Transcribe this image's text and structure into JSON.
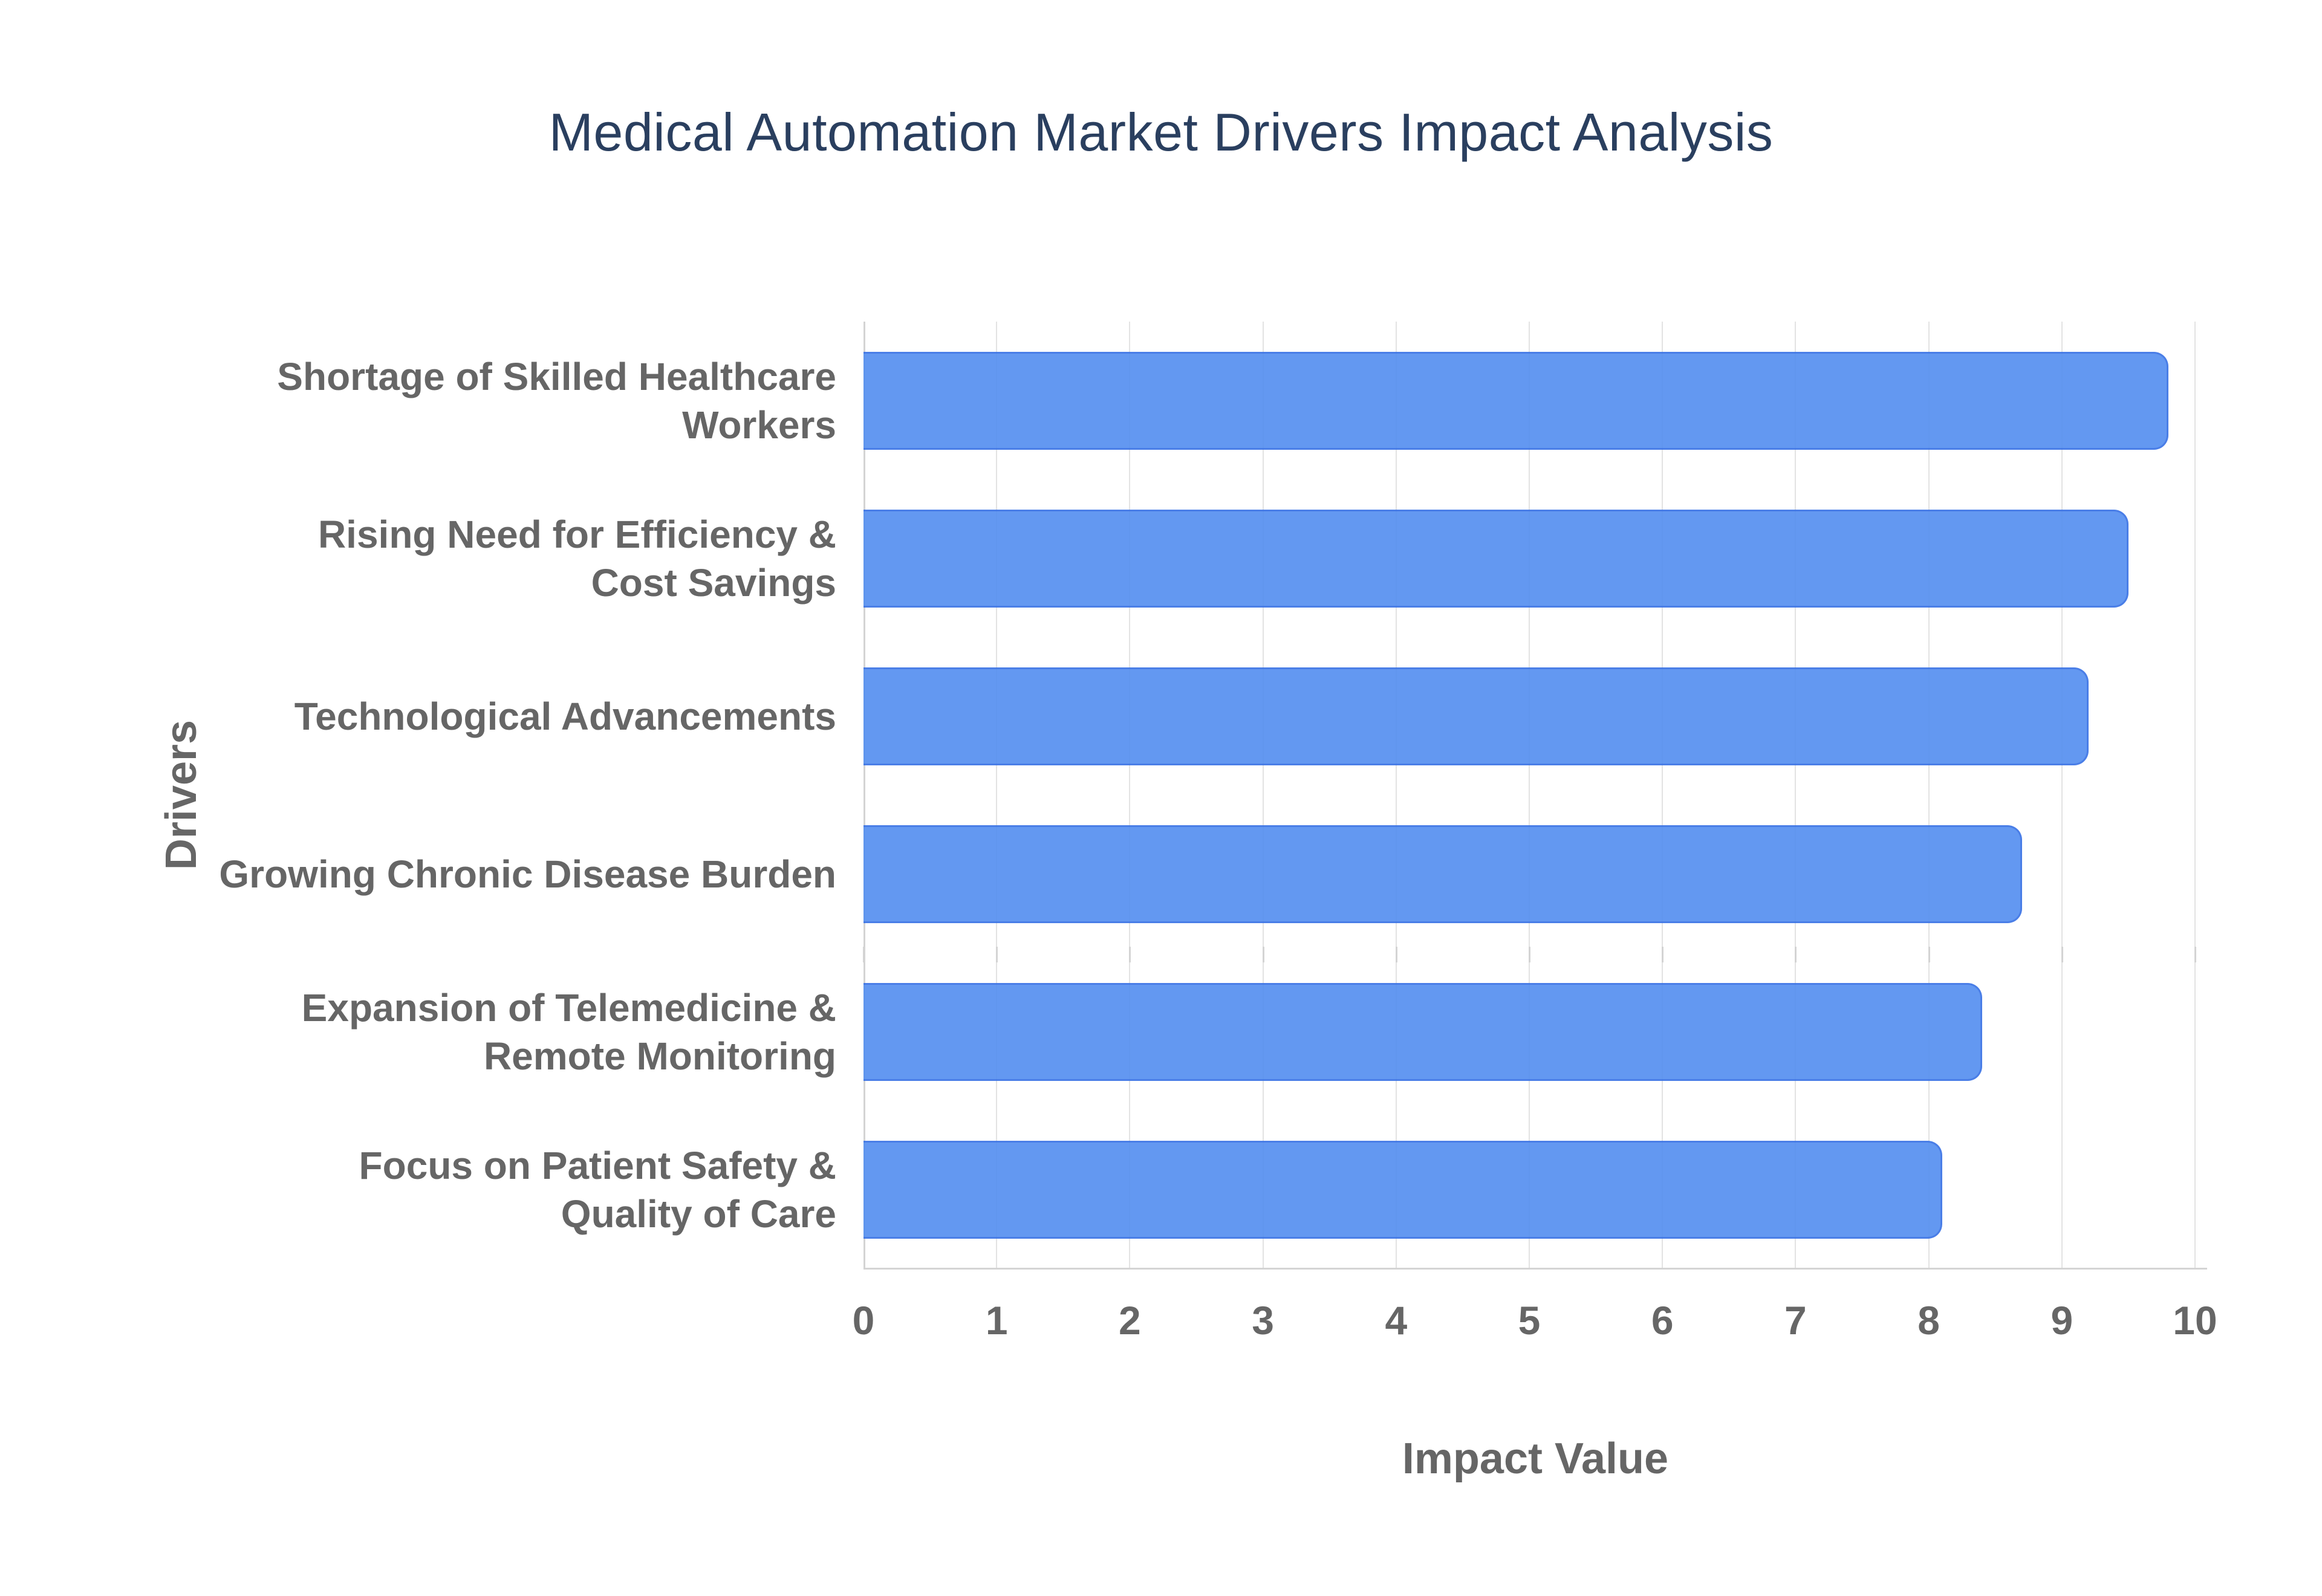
{
  "chart_data": {
    "type": "bar",
    "orientation": "horizontal",
    "title": "Medical Automation Market Drivers Impact Analysis",
    "categories": [
      "Shortage of Skilled Healthcare Workers",
      "Rising Need for Efficiency & Cost Savings",
      "Technological Advancements",
      "Growing Chronic Disease Burden",
      "Expansion of Telemedicine & Remote Monitoring",
      "Focus on Patient Safety & Quality of Care"
    ],
    "category_lines": [
      [
        "Shortage of Skilled Healthcare",
        "Workers"
      ],
      [
        "Rising Need for Efficiency &",
        "Cost Savings"
      ],
      [
        "Technological Advancements"
      ],
      [
        "Growing Chronic Disease Burden"
      ],
      [
        "Expansion of Telemedicine &",
        "Remote Monitoring"
      ],
      [
        "Focus on Patient Safety &",
        "Quality of Care"
      ]
    ],
    "values": [
      9.8,
      9.5,
      9.2,
      8.7,
      8.4,
      8.1
    ],
    "xlabel": "Impact Value",
    "ylabel": "Drivers",
    "xlim": [
      0,
      10
    ],
    "xticks": [
      "0",
      "1",
      "2",
      "3",
      "4",
      "5",
      "6",
      "7",
      "8",
      "9",
      "10"
    ],
    "grid": true,
    "legend_position": "none",
    "colors": {
      "bar_fill": "#5690F0",
      "bar_border": "#3B74E6",
      "gridline": "#E3E3E3",
      "axis_line": "#D4D4D4",
      "axis_text": "#666666",
      "title_text": "#2A3F5F",
      "background": "#FFFFFF"
    }
  }
}
